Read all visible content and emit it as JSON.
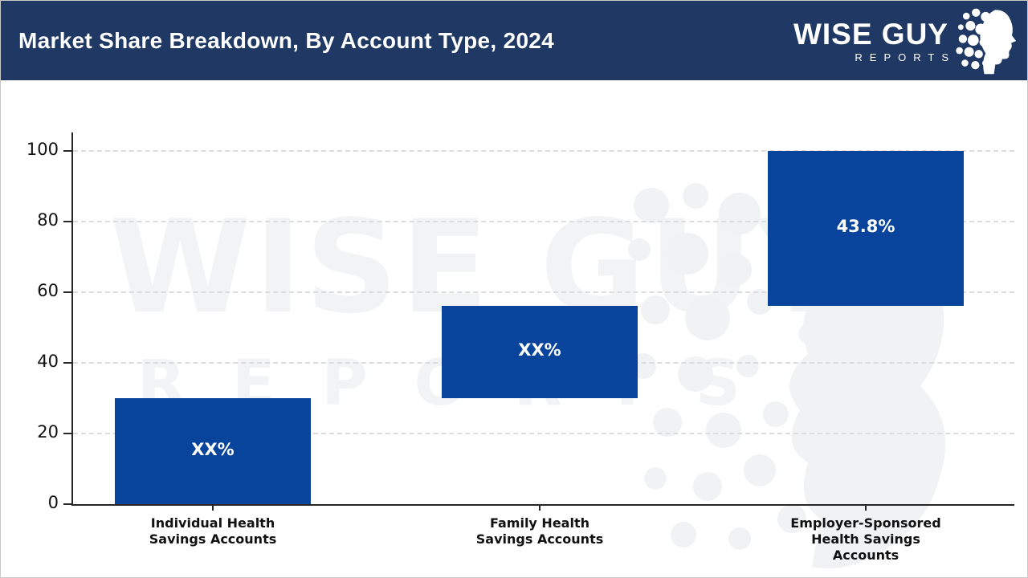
{
  "header": {
    "title": "Market Share Breakdown, By Account Type, 2024",
    "bg_color": "#1f3864"
  },
  "logo": {
    "line1": "WISE GUY",
    "line2": "REPORTS"
  },
  "watermark": {
    "line1": "WISE GUY",
    "line2": "REPORTS"
  },
  "chart_data": {
    "type": "bar",
    "subtype": "waterfall-market-share",
    "title": "Market Share Breakdown, By Account Type, 2024",
    "categories": [
      [
        "Individual Health",
        "Savings Accounts"
      ],
      [
        "Family Health",
        "Savings Accounts"
      ],
      [
        "Employer-Sponsored",
        "Health Savings",
        "Accounts"
      ]
    ],
    "segments": [
      {
        "category": "Individual Health Savings Accounts",
        "start": 0,
        "end": 30,
        "label": "XX%"
      },
      {
        "category": "Family Health Savings Accounts",
        "start": 30,
        "end": 56.2,
        "label": "XX%"
      },
      {
        "category": "Employer-Sponsored Health Savings Accounts",
        "start": 56.2,
        "end": 100,
        "label": "43.8%"
      }
    ],
    "ylim": [
      0,
      100
    ],
    "yticks": [
      0,
      20,
      40,
      60,
      80,
      100
    ],
    "grid": "dashed-horizontal",
    "legend": "none",
    "bar_color": "#08449b",
    "bar_label_color": "#ffffff",
    "axis_color": "#262626",
    "grid_color": "#dcdcdc"
  }
}
